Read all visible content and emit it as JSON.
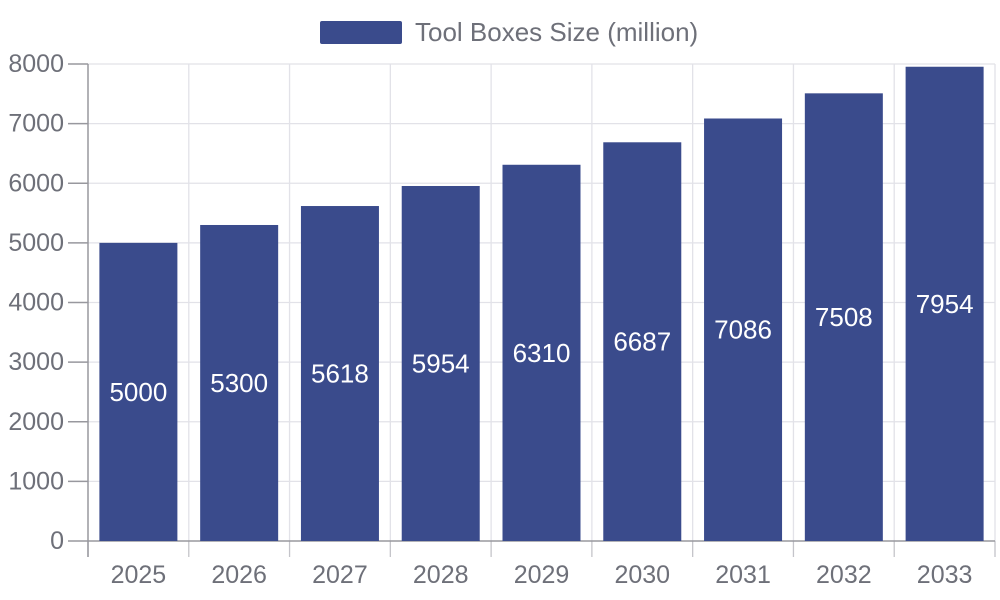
{
  "chart_data": {
    "type": "bar",
    "title": "",
    "legend": "Tool Boxes Size (million)",
    "categories": [
      "2025",
      "2026",
      "2027",
      "2028",
      "2029",
      "2030",
      "2031",
      "2032",
      "2033"
    ],
    "values": [
      5000,
      5300,
      5618,
      5954,
      6310,
      6687,
      7086,
      7508,
      7954
    ],
    "ylim": [
      0,
      8000
    ],
    "ytick_step": 1000,
    "yticks": [
      0,
      1000,
      2000,
      3000,
      4000,
      5000,
      6000,
      7000,
      8000
    ],
    "grid": "horizontal and vertical light gridlines",
    "legend_position": "top-center",
    "value_label_position": "inside-center",
    "colors": {
      "bar": "#3A4B8C",
      "value_label": "#FFFFFF",
      "axis_line": "#98989E",
      "tick_line": "#C4C4CA",
      "gridline": "#E2E2E8",
      "tick_label": "#6E7079",
      "legend_text": "#6E7079",
      "background": "#FFFFFF"
    }
  }
}
